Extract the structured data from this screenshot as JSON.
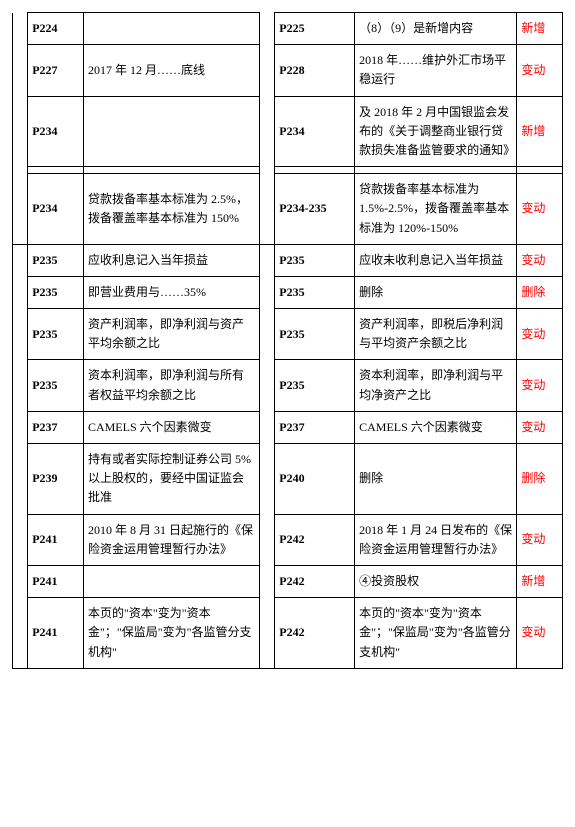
{
  "rows": [
    {
      "g1b": "no-top no-bottom",
      "p1": "P224",
      "t1": "",
      "g2b": "no-top no-bottom",
      "p2": "P225",
      "t2": "（8）（9）是新增内容",
      "st": "新增",
      "stc": "red"
    },
    {
      "g1b": "no-top no-bottom",
      "p1": "P227",
      "t1": "2017 年 12 月……底线",
      "g2b": "no-top no-bottom",
      "p2": "P228",
      "t2": "2018 年……维护外汇市场平稳运行",
      "st": "变动",
      "stc": "red"
    },
    {
      "g1b": "no-top no-bottom",
      "p1": "P234",
      "t1": "",
      "g2b": "no-top no-bottom",
      "p2": "P234",
      "t2": "及 2018 年 2 月中国银监会发布的《关于调整商业银行贷款损失准备监管要求的通知》",
      "st": "新增",
      "stc": "red"
    },
    {
      "g1b": "no-top no-bottom",
      "p1": "",
      "t1": "",
      "g2b": "no-top no-bottom",
      "p2": "",
      "t2": "",
      "st": "",
      "narrow": true
    },
    {
      "g1b": "no-top no-bottom",
      "p1": "P234",
      "t1": "贷款拨备率基本标准为 2.5%，拨备覆盖率基本标准为 150%",
      "g2b": "no-top no-bottom",
      "p2": "P234-235",
      "t2": "贷款拨备率基本标准为 1.5%-2.5%，拨备覆盖率基本标准为 120%-150%",
      "st": "变动",
      "stc": "red"
    },
    {
      "g1b": "no-bottom",
      "p1": "P235",
      "t1": "应收利息记入当年损益",
      "g2b": "no-bottom",
      "p2": "P235",
      "t2": "应收未收利息记入当年损益",
      "st": "变动",
      "stc": "red"
    },
    {
      "g1b": "no-top no-bottom",
      "p1": "P235",
      "t1": "即营业费用与……35%",
      "g2b": "no-top no-bottom",
      "p2": "P235",
      "t2": "删除",
      "st": "删除",
      "stc": "red"
    },
    {
      "g1b": "no-top no-bottom",
      "p1": "P235",
      "t1": "资产利润率，即净利润与资产平均余额之比",
      "g2b": "no-top no-bottom",
      "p2": "P235",
      "t2": "资产利润率，即税后净利润与平均资产余额之比",
      "st": "变动",
      "stc": "red"
    },
    {
      "g1b": "no-top no-bottom",
      "p1": "P235",
      "t1": "资本利润率，即净利润与所有者权益平均余额之比",
      "g2b": "no-top no-bottom",
      "p2": "P235",
      "t2": "资本利润率，即净利润与平均净资产之比",
      "st": "变动",
      "stc": "red"
    },
    {
      "g1b": "no-top no-bottom",
      "p1": "P237",
      "t1": "CAMELS 六个因素微变",
      "g2b": "no-top no-bottom",
      "p2": "P237",
      "t2": "CAMELS 六个因素微变",
      "st": "变动",
      "stc": "red"
    },
    {
      "g1b": "no-top no-bottom",
      "p1": "P239",
      "t1": "持有或者实际控制证券公司 5%以上股权的，要经中国证监会批准",
      "g2b": "no-top no-bottom",
      "p2": "P240",
      "t2": "删除",
      "st": "删除",
      "stc": "red"
    },
    {
      "g1b": "no-top no-bottom",
      "p1": "P241",
      "t1": "2010 年 8 月 31 日起施行的《保险资金运用管理暂行办法》",
      "g2b": "no-top no-bottom",
      "p2": "P242",
      "t2": "2018 年 1 月 24 日发布的《保险资金运用管理暂行办法》",
      "st": "变动",
      "stc": "red"
    },
    {
      "g1b": "no-top no-bottom",
      "p1": "P241",
      "t1": "",
      "g2b": "no-top no-bottom",
      "p2": "P242",
      "t2": "④投资股权",
      "st": "新增",
      "stc": "red"
    },
    {
      "g1b": "no-top",
      "p1": "P241",
      "t1": "本页的\"资本\"变为\"资本金\"；\"保监局\"变为\"各监管分支机构\"",
      "g2b": "no-top",
      "p2": "P242",
      "t2": "本页的\"资本\"变为\"资本金\"；\"保监局\"变为\"各监管分支机构\"",
      "st": "变动",
      "stc": "red"
    }
  ]
}
